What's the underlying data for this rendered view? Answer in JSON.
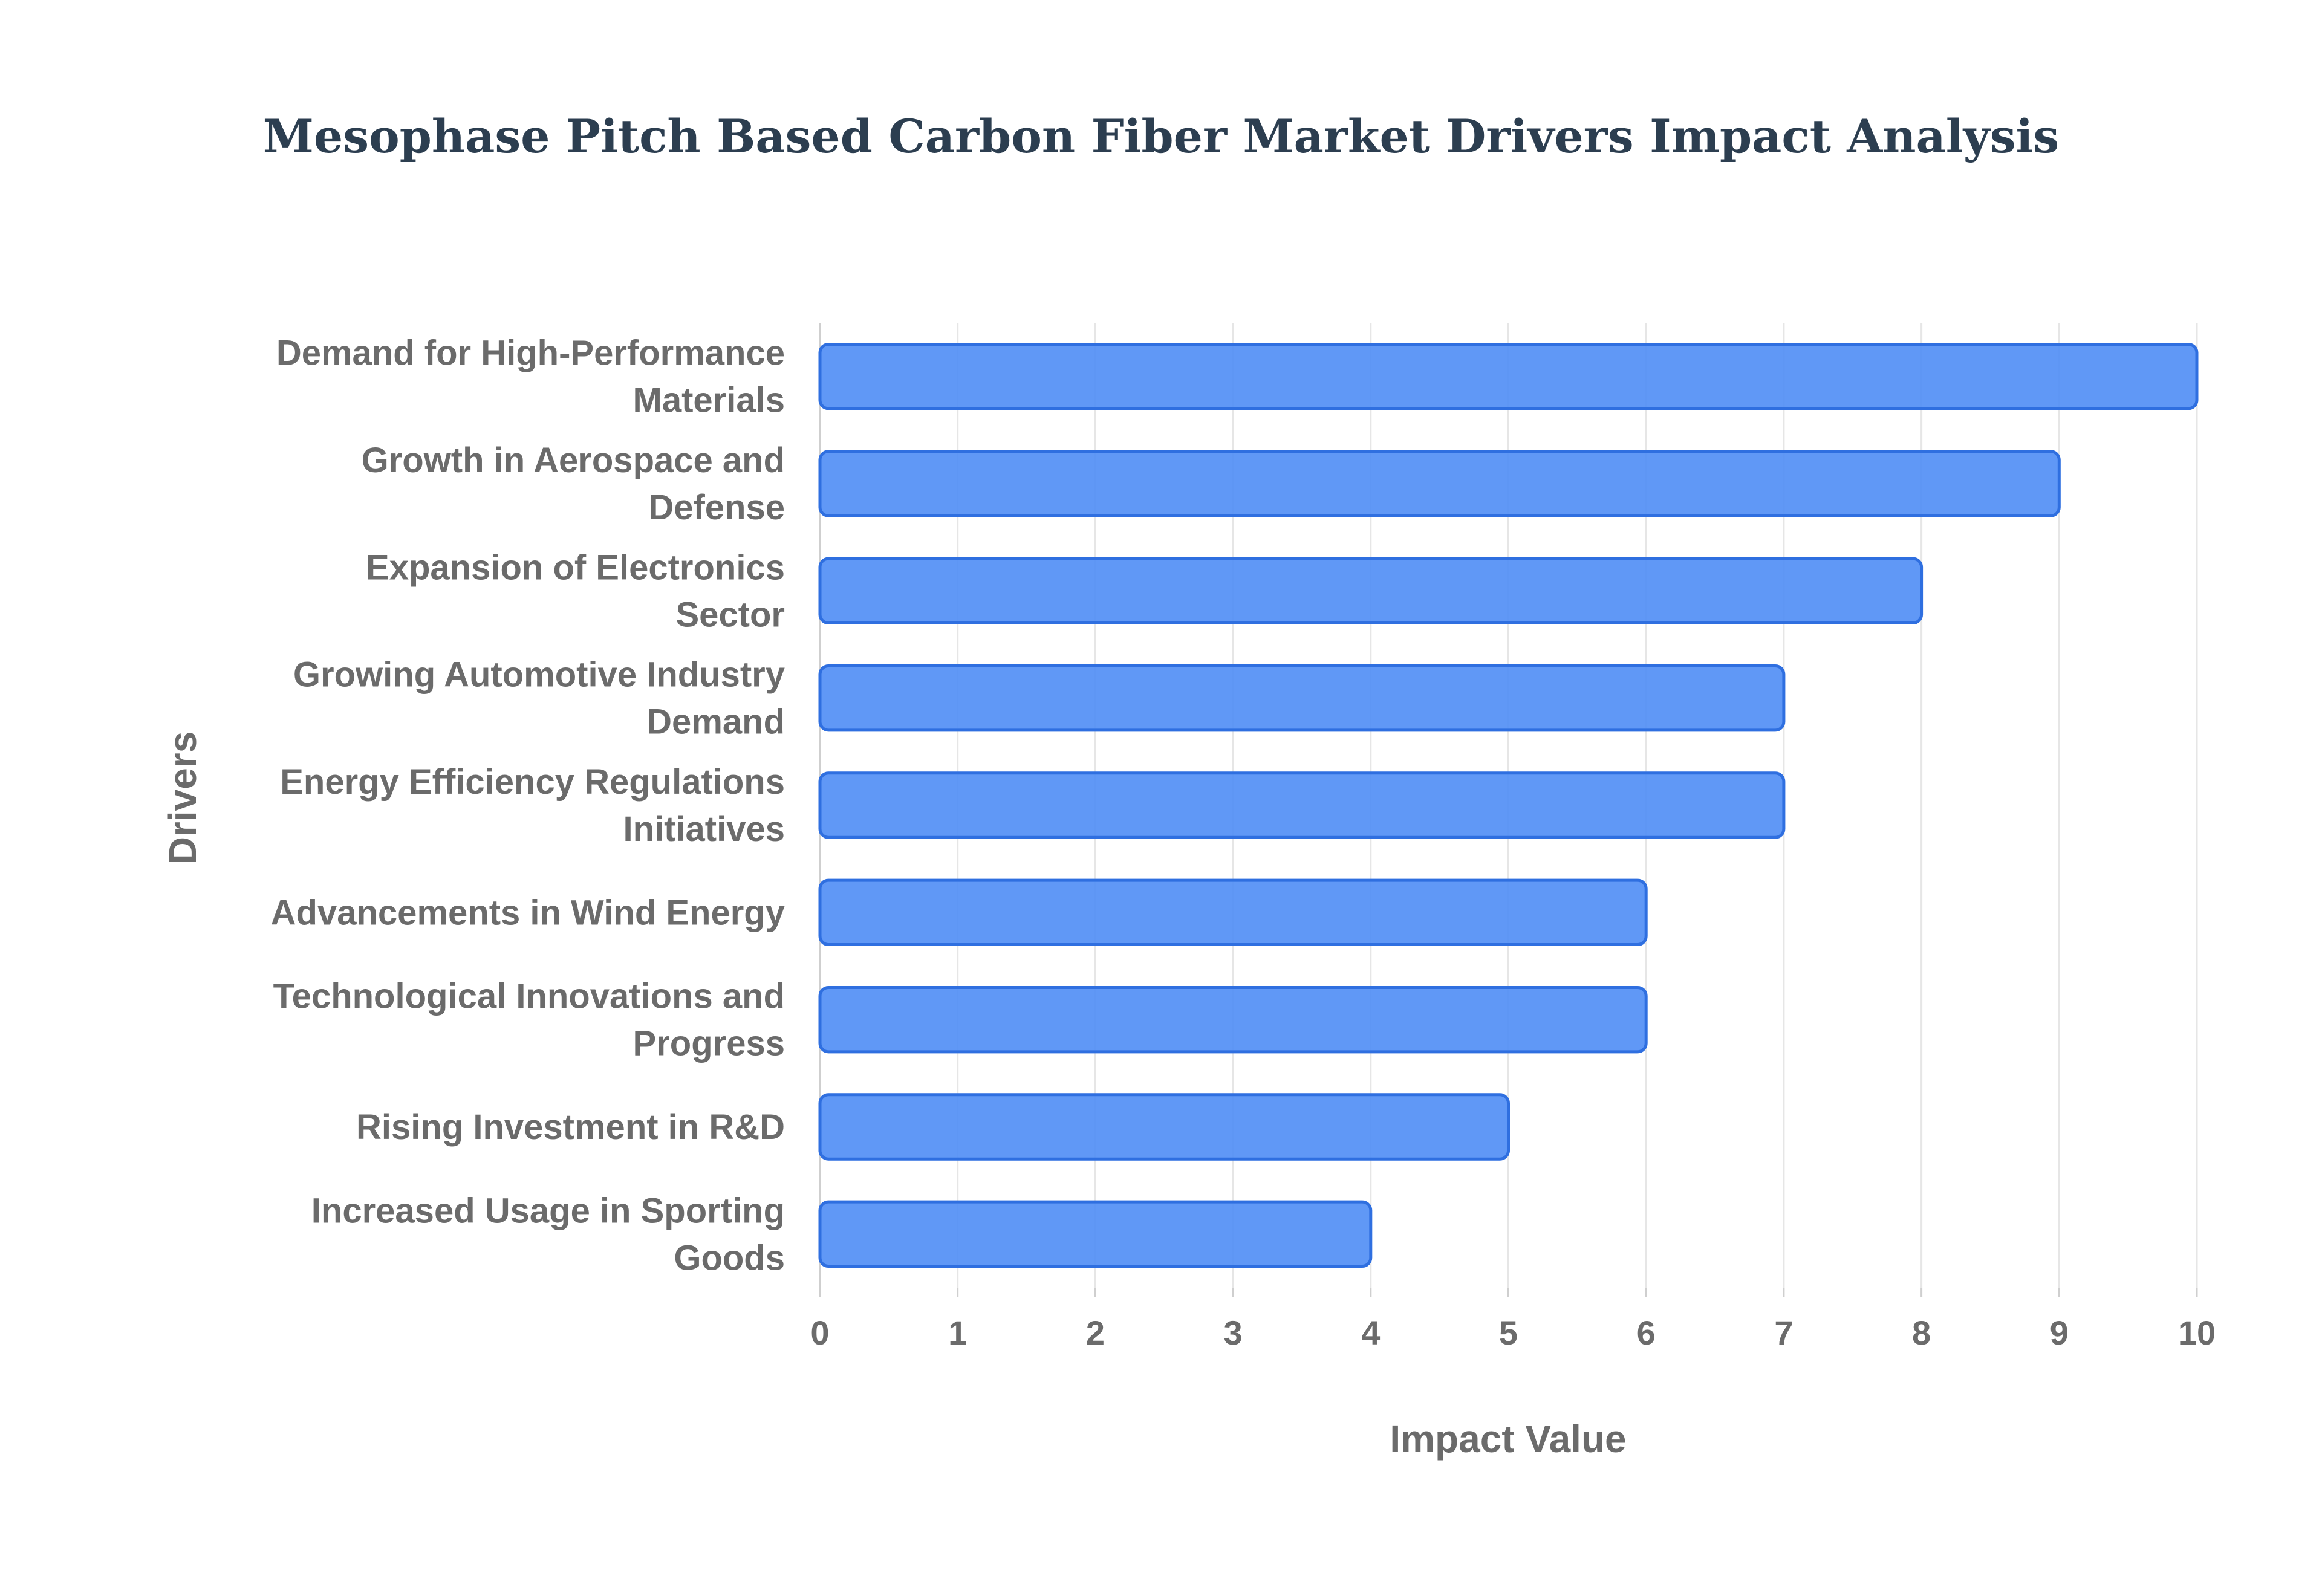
{
  "chart_data": {
    "type": "bar",
    "orientation": "horizontal",
    "title": "Mesophase Pitch Based Carbon Fiber Market Drivers Impact Analysis",
    "xlabel": "Impact Value",
    "ylabel": "Drivers",
    "xlim": [
      0,
      10
    ],
    "x_ticks": [
      "0",
      "1",
      "2",
      "3",
      "4",
      "5",
      "6",
      "7",
      "8",
      "9",
      "10"
    ],
    "grid": true,
    "legend": "none",
    "bar_color": "#4f8df5",
    "bar_edge_color": "#2f6fe0",
    "categories": [
      "Demand for High-Performance Materials",
      "Growth in Aerospace and Defense",
      "Expansion of Electronics Sector",
      "Growing Automotive Industry Demand",
      "Energy Efficiency Regulations Initiatives",
      "Advancements in Wind Energy",
      "Technological Innovations and Progress",
      "Rising Investment in R&D",
      "Increased Usage in Sporting Goods"
    ],
    "category_label_lines": [
      [
        "Demand for High-Performance",
        "Materials"
      ],
      [
        "Growth in Aerospace and",
        "Defense"
      ],
      [
        "Expansion of Electronics",
        "Sector"
      ],
      [
        "Growing Automotive Industry",
        "Demand"
      ],
      [
        "Energy Efficiency Regulations",
        "Initiatives"
      ],
      [
        "Advancements in Wind Energy"
      ],
      [
        "Technological Innovations and",
        "Progress"
      ],
      [
        "Rising Investment in R&D"
      ],
      [
        "Increased Usage in Sporting",
        "Goods"
      ]
    ],
    "values": [
      10,
      9,
      8,
      7,
      7,
      6,
      6,
      5,
      4
    ]
  }
}
